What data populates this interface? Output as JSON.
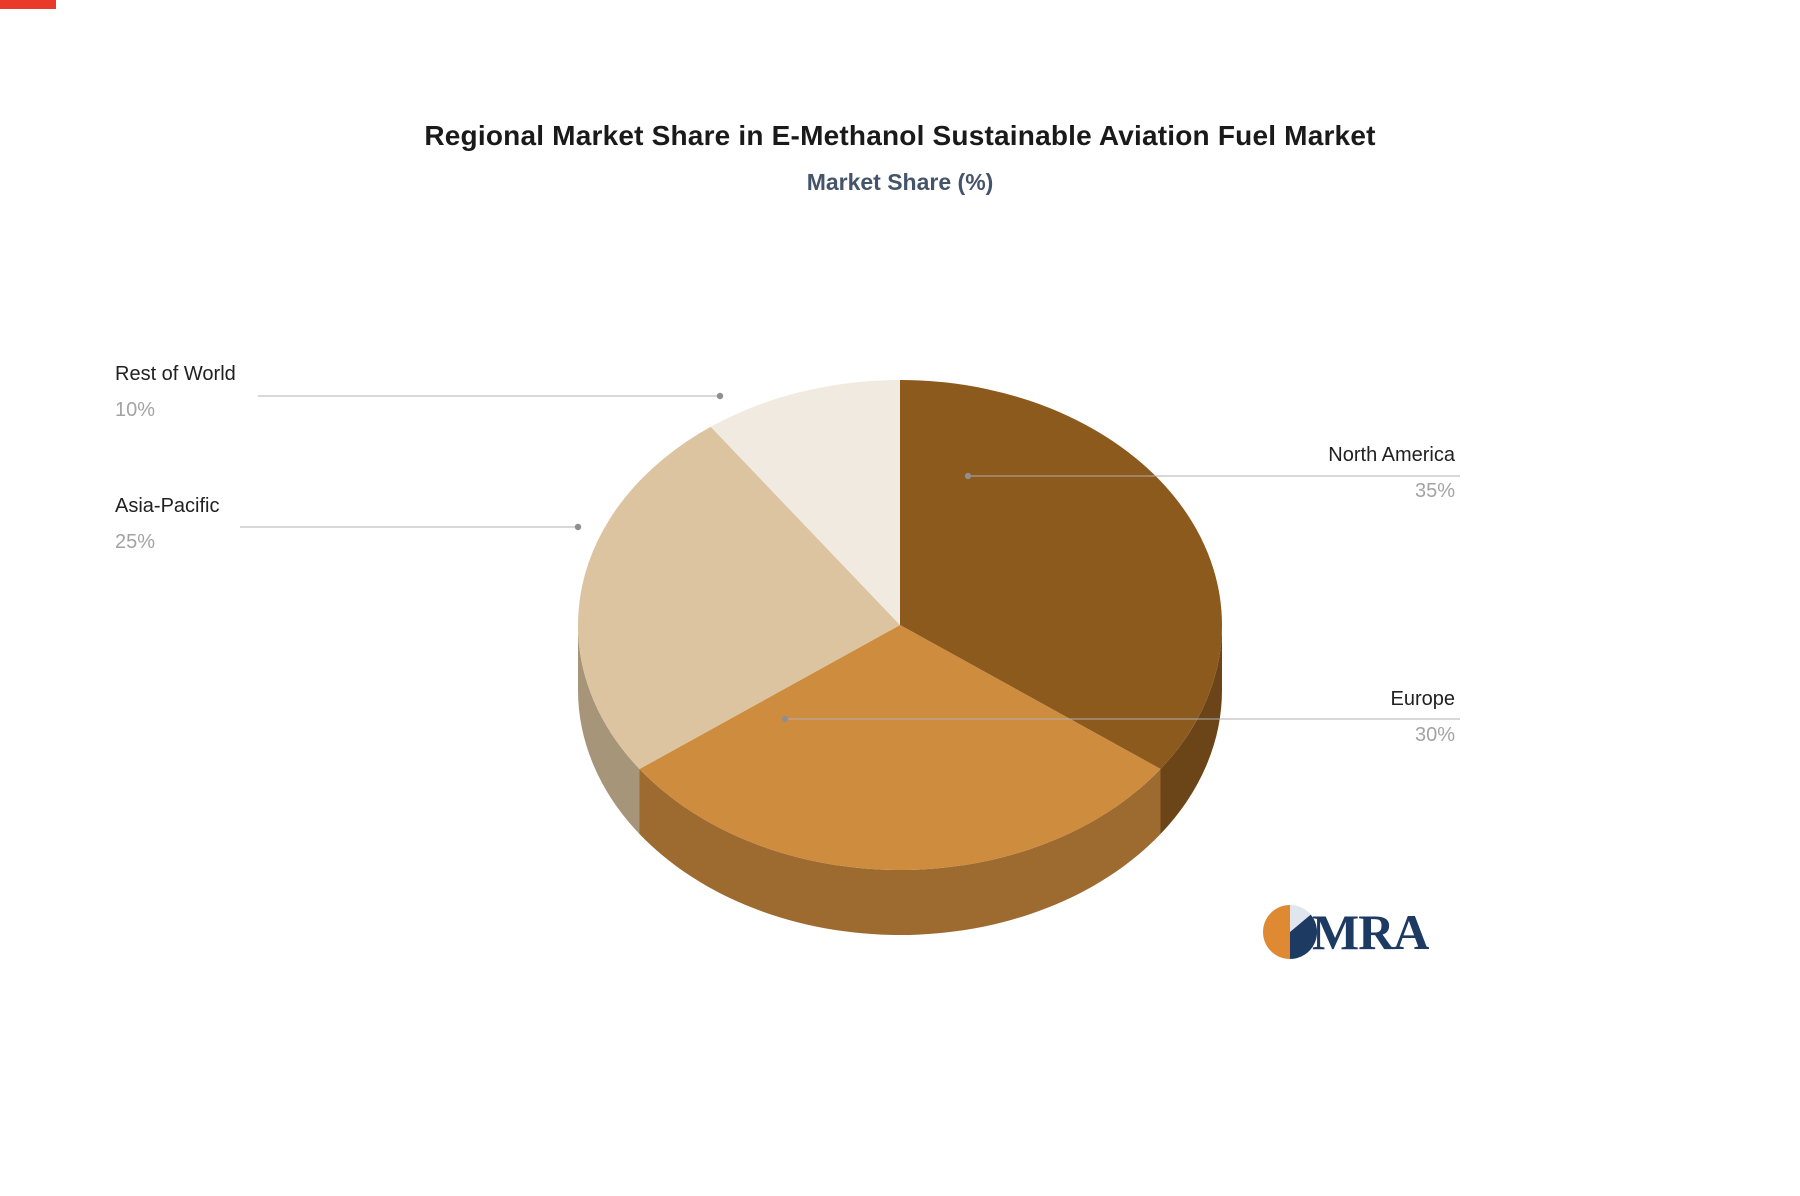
{
  "chart_data": {
    "type": "pie",
    "style": "3d",
    "title": "Regional Market Share in E-Methanol Sustainable Aviation Fuel Market",
    "subtitle": "Market Share (%)",
    "unit": "%",
    "labels": [
      "North America",
      "Europe",
      "Asia-Pacific",
      "Rest of World"
    ],
    "values": [
      35,
      30,
      25,
      10
    ],
    "value_labels": [
      "35%",
      "30%",
      "25%",
      "10%"
    ],
    "colors": [
      "#8d5a1e",
      "#ce8c3f",
      "#dcc4a1",
      "#f1eae1"
    ],
    "start_angle_deg": -90,
    "direction": "clockwise",
    "legend_position": "none",
    "label_style": "leader-lines"
  },
  "logo": {
    "text": "MRA",
    "colors": {
      "orange": "#df8a32",
      "navy": "#1d3a63",
      "light": "#dfe6ee"
    }
  }
}
